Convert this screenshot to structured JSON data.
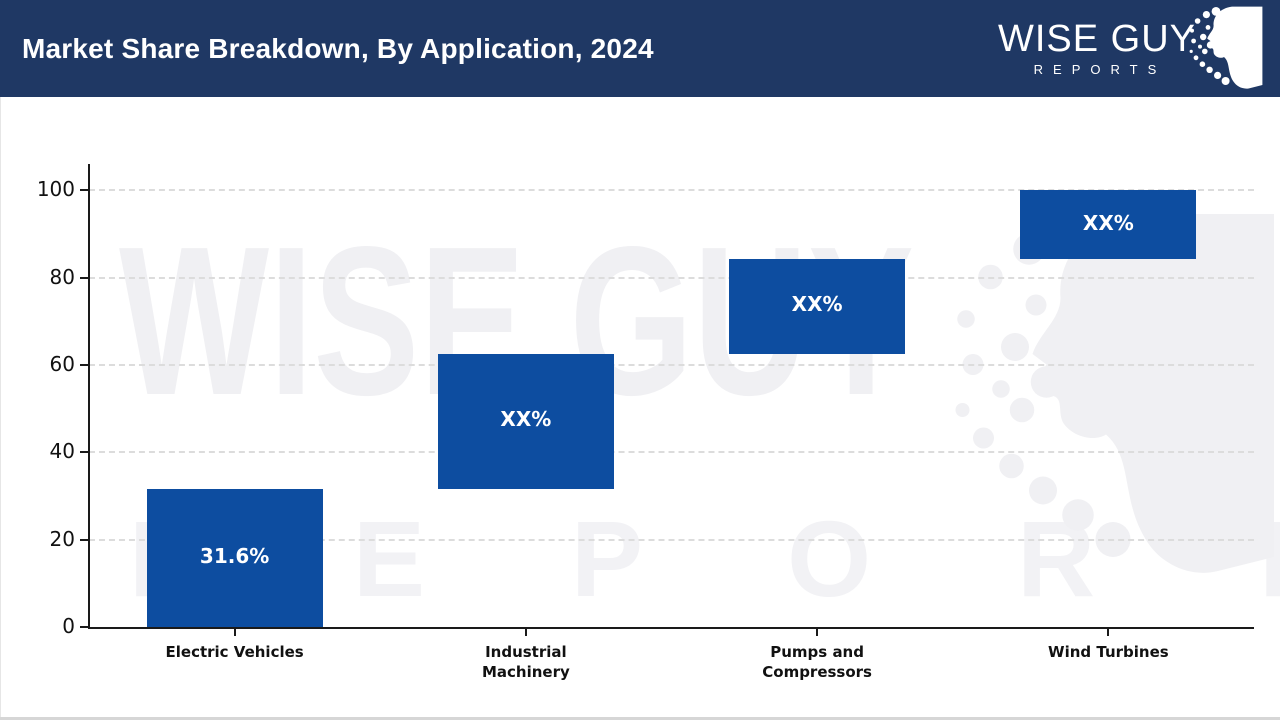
{
  "header": {
    "title": "Market Share Breakdown, By Application, 2024",
    "logo": {
      "wordmark": "WISE GUY",
      "subtitle": "REPORTS"
    }
  },
  "watermark": {
    "line1": "WISE GUY",
    "line2": "R E P O R T S"
  },
  "colors": {
    "header_bg": "#1f3864",
    "bar": "#0d4da0",
    "bar_label": "#ffffff",
    "grid": "#dcdcdc",
    "axis": "#1a1a1a",
    "watermark": "#f0f0f3"
  },
  "chart_data": {
    "type": "bar",
    "subtype": "waterfall",
    "title": "Market Share Breakdown, By Application, 2024",
    "categories": [
      "Electric Vehicles",
      "Industrial Machinery",
      "Pumps and Compressors",
      "Wind Turbines"
    ],
    "segments": [
      {
        "category": "Electric Vehicles",
        "label": "31.6%",
        "from": 0,
        "to": 31.6
      },
      {
        "category": "Industrial Machinery",
        "label": "XX%",
        "from": 31.6,
        "to": 62.6
      },
      {
        "category": "Pumps and Compressors",
        "label": "XX%",
        "from": 62.6,
        "to": 84.2
      },
      {
        "category": "Wind Turbines",
        "label": "XX%",
        "from": 84.2,
        "to": 100
      }
    ],
    "increments": [
      31.6,
      31.0,
      21.6,
      15.8
    ],
    "bar_labels": [
      "31.6%",
      "XX%",
      "XX%",
      "XX%"
    ],
    "xlabel": "",
    "ylabel": "",
    "ylim": [
      0,
      100
    ],
    "yticks": [
      0,
      20,
      40,
      60,
      80,
      100
    ],
    "grid": "horizontal-dashed",
    "legend": "none"
  }
}
